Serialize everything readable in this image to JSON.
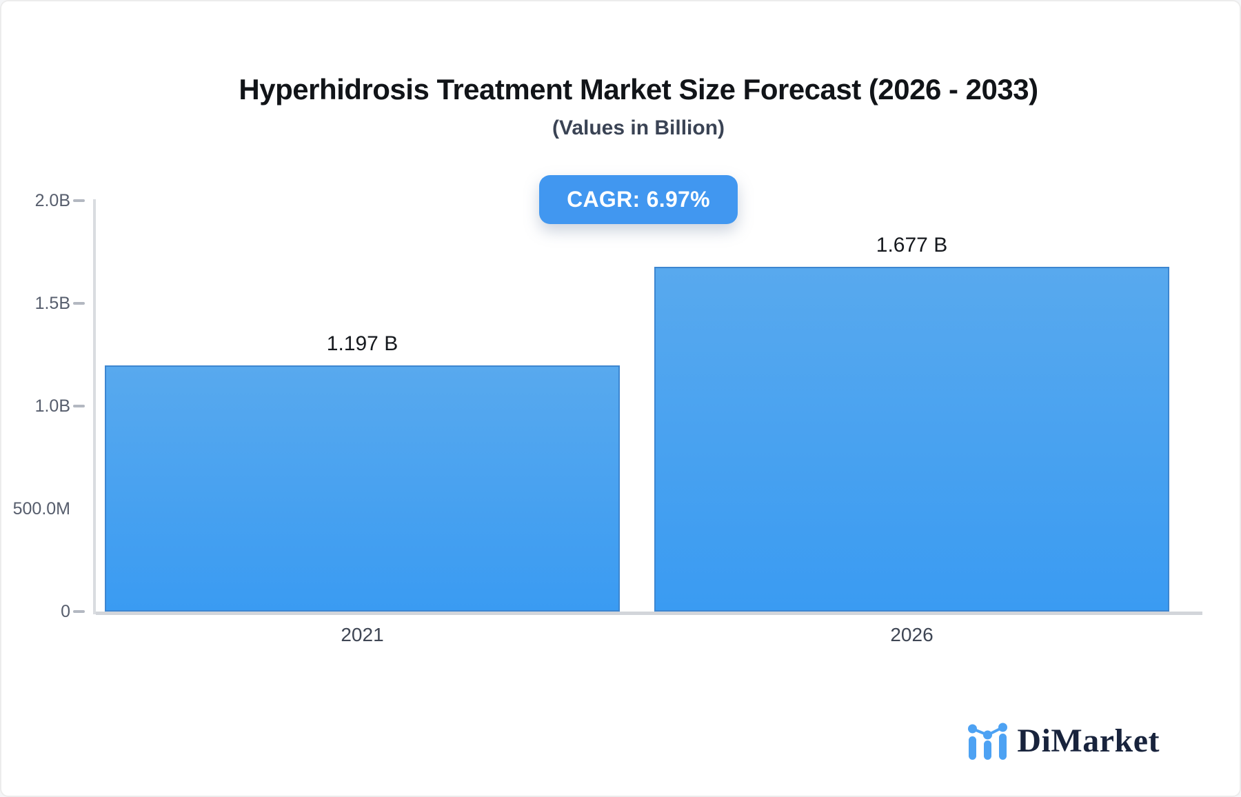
{
  "header": {
    "title": "Hyperhidrosis Treatment Market Size Forecast (2026 - 2033)",
    "subtitle": "(Values in Billion)",
    "cagr_badge": "CAGR: 6.97%"
  },
  "chart_data": {
    "type": "bar",
    "title": "Hyperhidrosis Treatment Market Size Forecast (2026 - 2033)",
    "subtitle": "(Values in Billion)",
    "cagr_percent": 6.97,
    "categories": [
      "2021",
      "2026"
    ],
    "values": [
      1.197,
      1.677
    ],
    "value_labels": [
      "1.197 B",
      "1.677 B"
    ],
    "ylim": [
      0,
      2.0
    ],
    "yticks": [
      {
        "label": "2.0B",
        "value": 2.0,
        "dash": true
      },
      {
        "label": "1.5B",
        "value": 1.5,
        "dash": true
      },
      {
        "label": "1.0B",
        "value": 1.0,
        "dash": true
      },
      {
        "label": "500.0M",
        "value": 0.5,
        "dash": false
      },
      {
        "label": "0",
        "value": 0.0,
        "dash": true
      }
    ],
    "grid": false,
    "legend": false
  },
  "colors": {
    "bar_fill_top": "#58A9EE",
    "bar_fill_bottom": "#3A9BF2",
    "bar_border": "#3D86D0",
    "badge_bg": "#4197F0",
    "axis_line": "#D2D5DA",
    "logo_blue": "#4DA2F3",
    "logo_navy": "#18233C"
  },
  "footer": {
    "brand": "DiMarket"
  }
}
